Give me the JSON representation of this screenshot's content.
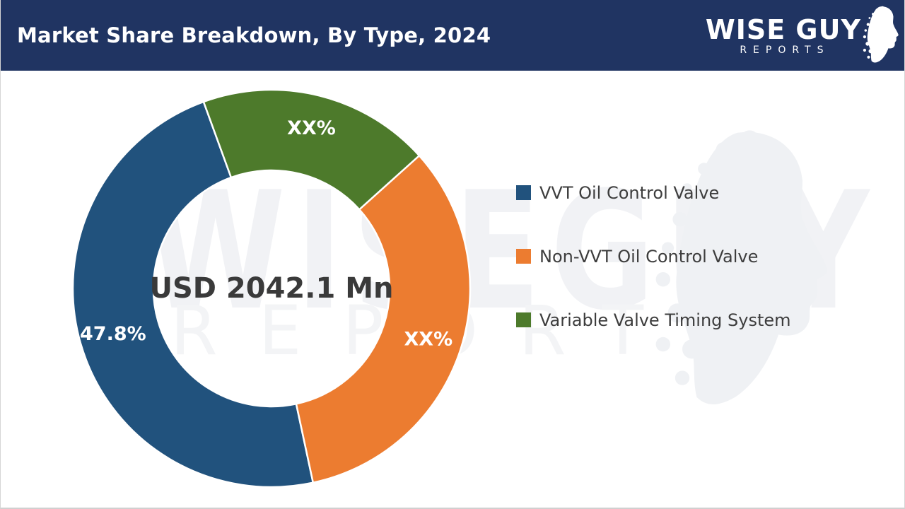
{
  "header": {
    "title": "Market Share Breakdown, By Type, 2024",
    "bg_color": "#203462",
    "logo": {
      "line1": "WISE GUY",
      "line2": "REPORTS"
    }
  },
  "chart_data": {
    "type": "pie",
    "subtype": "donut",
    "title": "Market Share Breakdown, By Type, 2024",
    "center_label": "USD 2042.1 Mn",
    "legend_position": "right",
    "start_angle_deg": 110,
    "direction": "counterclockwise",
    "outer_radius_px": 281,
    "inner_radius_px": 167,
    "slices": [
      {
        "label": "VVT Oil Control Valve",
        "value": 47.8,
        "display": "47.8%",
        "color": "#21527d"
      },
      {
        "label": "Non-VVT Oil Control Valve",
        "value": 33.3,
        "display": "XX%",
        "color": "#ec7c30"
      },
      {
        "label": "Variable Valve Timing System",
        "value": 18.9,
        "display": "XX%",
        "color": "#4d7a2b"
      }
    ]
  },
  "watermark": {
    "line1": "WISEGUY",
    "line2": "REPORTS"
  }
}
